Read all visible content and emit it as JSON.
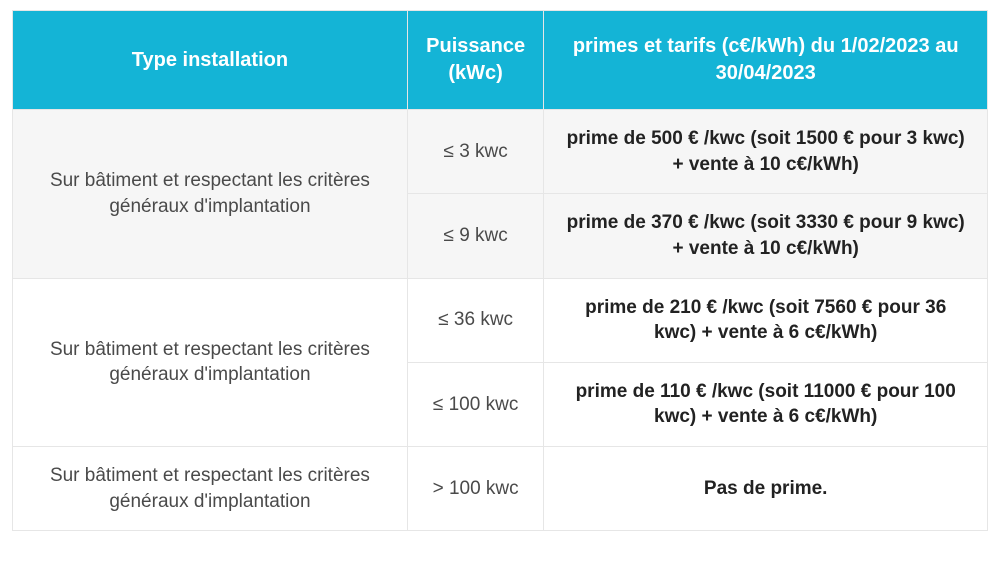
{
  "table": {
    "header_bg": "#14b4d6",
    "header_color": "#ffffff",
    "border_color": "#e6e6e6",
    "alt_row_bg": "#f6f6f6",
    "text_color_light": "#4a4a4a",
    "text_color_bold": "#222222",
    "font_size_header": 20,
    "font_size_body": 19,
    "columns": [
      {
        "label": "Type installation",
        "width_pct": 40.5
      },
      {
        "label": "Puissance (kWc)",
        "width_pct": 14
      },
      {
        "label": "primes et tarifs (c€/kWh) du 1/02/2023 au 30/04/2023",
        "width_pct": 45.5
      }
    ],
    "groups": [
      {
        "type_label": "Sur bâtiment et respectant les critères généraux d'implantation",
        "alt": true,
        "rows": [
          {
            "power": "≤ 3 kwc",
            "tariff": "prime de 500 € /kwc (soit 1500 € pour 3 kwc) + vente à 10 c€/kWh)"
          },
          {
            "power": "≤ 9 kwc",
            "tariff": "prime de 370 € /kwc (soit 3330 € pour 9 kwc) + vente à 10 c€/kWh)"
          }
        ]
      },
      {
        "type_label": "Sur bâtiment et respectant les critères généraux d'implantation",
        "alt": false,
        "rows": [
          {
            "power": "≤ 36 kwc",
            "tariff": "prime de 210 € /kwc (soit 7560 € pour 36 kwc)   + vente à 6 c€/kWh)"
          },
          {
            "power": "≤ 100 kwc",
            "tariff": "prime de 110 € /kwc (soit 11000 € pour 100 kwc) + vente à 6 c€/kWh)"
          }
        ]
      },
      {
        "type_label": "Sur bâtiment et respectant les critères généraux d'implantation",
        "alt": false,
        "rows": [
          {
            "power": "> 100 kwc",
            "tariff": "Pas de prime."
          }
        ]
      }
    ]
  }
}
